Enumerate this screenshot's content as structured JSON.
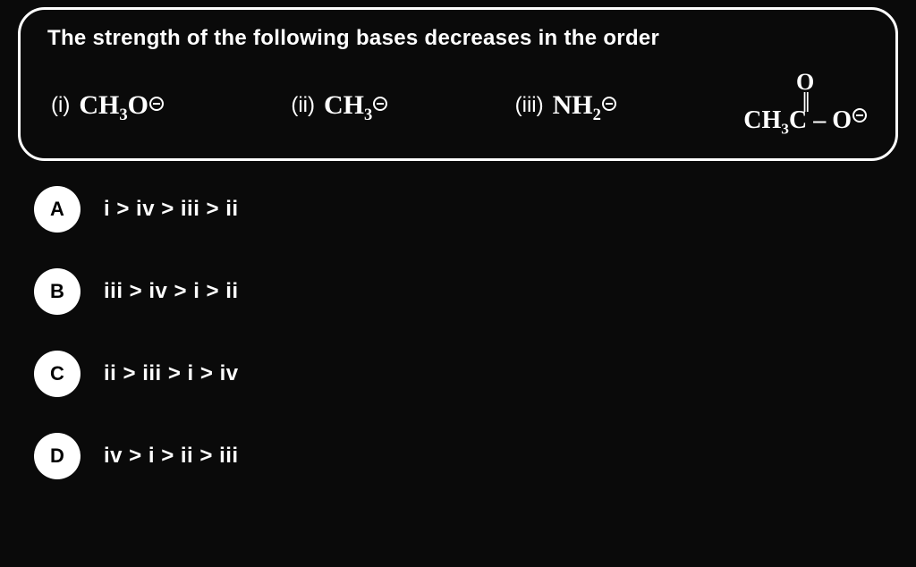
{
  "question": {
    "title": "The strength of the following bases decreases in the order",
    "items": [
      {
        "idx": "(i)",
        "formula_html": "CH<sub>3</sub>O"
      },
      {
        "idx": "(ii)",
        "formula_html": "CH<sub>3</sub>"
      },
      {
        "idx": "(iii)",
        "formula_html": "NH<sub>2</sub>"
      }
    ],
    "acetate": {
      "top": "O",
      "dbl": "||",
      "left": "CH",
      "left_sub": "3",
      "mid": "C – O"
    }
  },
  "answers": [
    {
      "key": "A",
      "text": "i > iv > iii > ii"
    },
    {
      "key": "B",
      "text": "iii > iv > i > ii"
    },
    {
      "key": "C",
      "text": "ii > iii > i > iv"
    },
    {
      "key": "D",
      "text": "iv > i > ii > iii"
    }
  ]
}
